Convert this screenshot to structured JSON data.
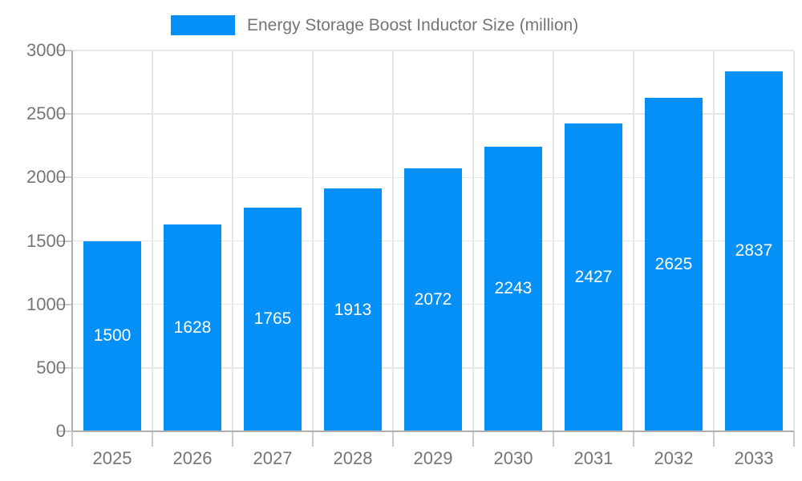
{
  "legend": {
    "label": "Energy Storage Boost Inductor Size (million)"
  },
  "chart_data": {
    "type": "bar",
    "title": "Energy Storage Boost Inductor Size (million)",
    "categories": [
      "2025",
      "2026",
      "2027",
      "2028",
      "2029",
      "2030",
      "2031",
      "2032",
      "2033"
    ],
    "values": [
      1500,
      1628,
      1765,
      1913,
      2072,
      2243,
      2427,
      2625,
      2837
    ],
    "xlabel": "",
    "ylabel": "",
    "ylim": [
      0,
      3000
    ],
    "ytick_step": 500,
    "yticks": [
      "0",
      "500",
      "1000",
      "1500",
      "2000",
      "2500",
      "3000"
    ],
    "grid": true,
    "legend_position": "top",
    "value_labels_inside_bars": true
  },
  "colors": {
    "bar": "#0590f8",
    "bar_value_text": "#ffffff",
    "axis_text": "#757575",
    "gridline": "#e6e6e6",
    "axis_line": "#b0b0b0",
    "tick": "#c9c9c9",
    "background": "#ffffff"
  }
}
